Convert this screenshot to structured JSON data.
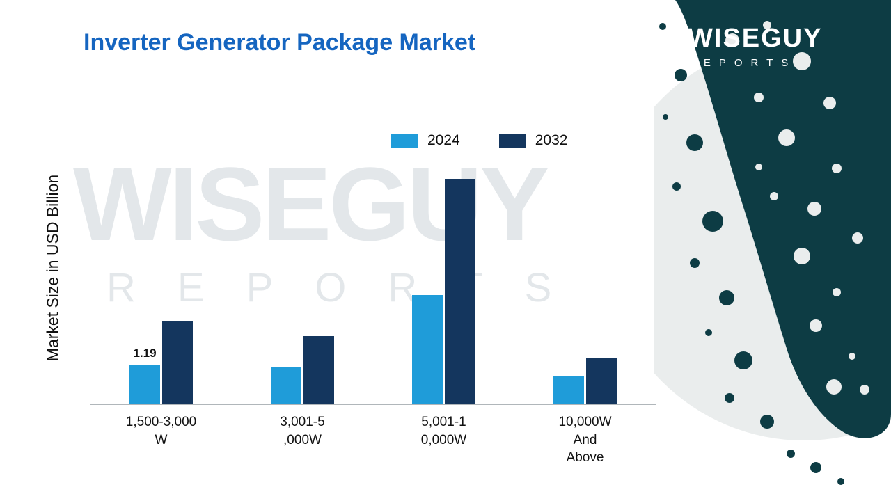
{
  "header": {
    "title": "Inverter Generator Package Market"
  },
  "logo": {
    "name": "WISEGUY",
    "subtitle": "REPORTS"
  },
  "watermark": {
    "line1": "WISEGUY",
    "line2": "REPORTS"
  },
  "chart_data": {
    "type": "bar",
    "title": "Inverter Generator Package Market",
    "xlabel": "",
    "ylabel": "Market Size in USD Billion",
    "categories": [
      "1,500-3,000\nW",
      "3,001-5\n,000W",
      "5,001-1\n0,000W",
      "10,000W\nAnd\nAbove"
    ],
    "series": [
      {
        "name": "2024",
        "color": "#1f9cd9",
        "values": [
          1.19,
          1.1,
          3.3,
          0.85
        ]
      },
      {
        "name": "2032",
        "color": "#14365e",
        "values": [
          2.5,
          2.05,
          6.85,
          1.4
        ]
      }
    ],
    "ylim": [
      0,
      7
    ],
    "grid": false,
    "legend_position": "top-center",
    "annotations": [
      {
        "series": "2024",
        "category_index": 0,
        "text": "1.19"
      }
    ]
  },
  "colors": {
    "title_blue": "#1565c0",
    "brand_teal": "#0d3c44",
    "circle_gray": "#eaeded",
    "watermark_gray": "#e3e7ea",
    "axis_gray": "#b0b6ba"
  }
}
